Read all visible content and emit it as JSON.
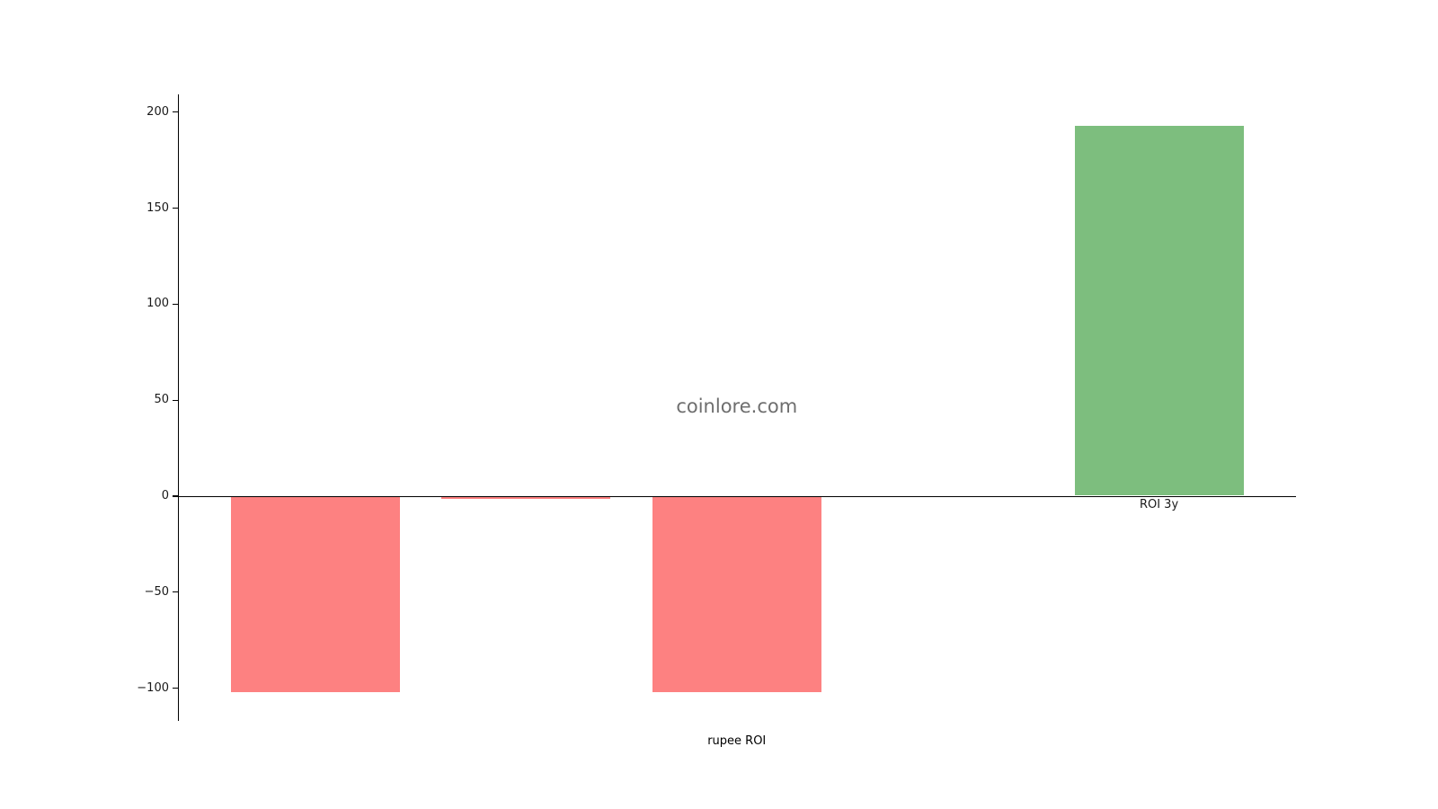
{
  "watermark": {
    "text": "coinlore.com",
    "color": "#6e6e6e"
  },
  "chart_data": {
    "type": "bar",
    "title": "",
    "xlabel": "rupee ROI",
    "ylabel": "",
    "categories": [
      "",
      "",
      "",
      "",
      "ROI 3y"
    ],
    "values": [
      -102,
      -1,
      -102,
      0,
      193
    ],
    "yticks": [
      200,
      150,
      100,
      50,
      0,
      -50,
      -100
    ],
    "ylim": [
      -117,
      209
    ],
    "grid": false,
    "legend": "none",
    "colors": {
      "positive": "#7dbe7e",
      "negative": "#fd8181",
      "axis": "#000000",
      "tick_label": "#1a1a1a"
    }
  }
}
